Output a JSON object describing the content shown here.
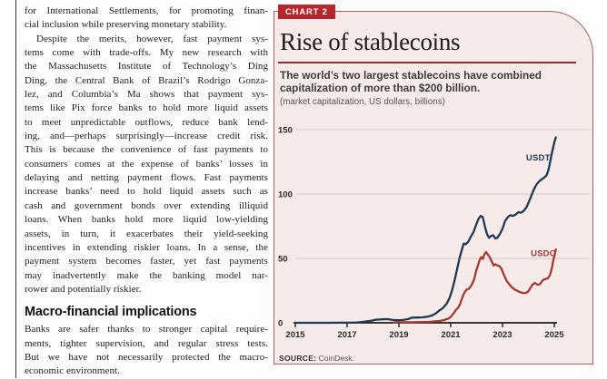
{
  "left_column": {
    "para1_lines": [
      "for International Settlements, for promoting finan-",
      "cial inclusion while preserving monetary stability."
    ],
    "para2_lines": [
      "Despite the merits, however, fast payment sys-",
      "tems come with trade-offs. My new research with",
      "the Massachusetts Institute of Technology’s Ding",
      "Ding, the Central Bank of Brazil’s Rodrigo Gonza-",
      "lez, and Columbia’s Ma shows that payment sys-",
      "tems like Pix force banks to hold more liquid assets",
      "to meet unpredictable outflows, reduce bank lend-",
      "ing, and—perhaps surprisingly—increase credit risk.",
      "This is because the convenience of fast payments to",
      "consumers comes at the expense of banks’ losses in",
      "delaying and netting payment flows. Fast payments",
      "increase banks’ need to hold liquid assets such as",
      "cash and government bonds over extending illiquid",
      "loans. When banks hold more liquid low-yielding",
      "assets, in turn, it exacerbates their yield-seeking",
      "incentives in extending riskier loans. In a sense, the",
      "payment system becomes faster, yet fast payments",
      "may inadvertently make the banking model nar-",
      "rower and potentially riskier."
    ],
    "heading": "Macro-financial implications",
    "para3_lines": [
      "Banks are safer thanks to stronger capital require-",
      "ments, tighter supervision, and regular stress tests.",
      "But we have not necessarily protected the macro-",
      "economic environment."
    ]
  },
  "chart_panel": {
    "badge": "CHART 2",
    "title": "Rise of stablecoins",
    "subtitle_lines": [
      "The world’s two largest stablecoins have combined",
      "capitalization of more than $200 billion."
    ],
    "note": "(market capitalization, US dollars, billions)",
    "source_label": "SOURCE:",
    "source_value": " CoinDesk.",
    "colors": {
      "panel_bg": "#f6ebe8",
      "panel_border": "#a66161",
      "badge_bg": "#b7262d",
      "divider": "#8d2d34"
    }
  },
  "chart_data": {
    "type": "line",
    "title": "Rise of stablecoins",
    "subtitle": "The world’s two largest stablecoins have combined capitalization of more than $200 billion.",
    "unit_note": "(market capitalization, US dollars, billions)",
    "source": "SOURCE: CoinDesk.",
    "xlim": [
      2015,
      2025.3
    ],
    "ylim": [
      0,
      150
    ],
    "x_ticks": [
      2015,
      2017,
      2019,
      2021,
      2023,
      2025
    ],
    "y_ticks": [
      0,
      50,
      100,
      150
    ],
    "grid": true,
    "legend_position": "inline-labels",
    "colors": {
      "grid": "#dccfcb",
      "axis": "#1c1b19",
      "tick_label": "#2a2927"
    },
    "series": [
      {
        "name": "USDT",
        "color": "#1e3a52",
        "label_pos": {
          "x": 2023.91,
          "y": 128
        },
        "points": [
          [
            2015.0,
            0
          ],
          [
            2015.6,
            0
          ],
          [
            2016.2,
            0.01
          ],
          [
            2016.8,
            0.05
          ],
          [
            2017.1,
            0.1
          ],
          [
            2017.4,
            0.3
          ],
          [
            2017.7,
            0.9
          ],
          [
            2017.95,
            1.6
          ],
          [
            2018.1,
            2.4
          ],
          [
            2018.35,
            2.7
          ],
          [
            2018.55,
            2.9
          ],
          [
            2018.75,
            2.2
          ],
          [
            2018.95,
            2.0
          ],
          [
            2019.15,
            2.2
          ],
          [
            2019.35,
            2.8
          ],
          [
            2019.5,
            4.0
          ],
          [
            2019.7,
            4.1
          ],
          [
            2019.9,
            4.2
          ],
          [
            2020.1,
            4.7
          ],
          [
            2020.25,
            5.4
          ],
          [
            2020.4,
            7.0
          ],
          [
            2020.55,
            9.4
          ],
          [
            2020.7,
            11.5
          ],
          [
            2020.85,
            15
          ],
          [
            2020.95,
            19
          ],
          [
            2021.05,
            25
          ],
          [
            2021.15,
            33
          ],
          [
            2021.25,
            42
          ],
          [
            2021.35,
            51
          ],
          [
            2021.45,
            58
          ],
          [
            2021.5,
            61.5
          ],
          [
            2021.58,
            61
          ],
          [
            2021.68,
            63
          ],
          [
            2021.78,
            67
          ],
          [
            2021.88,
            70.5
          ],
          [
            2021.98,
            76
          ],
          [
            2022.08,
            81
          ],
          [
            2022.16,
            83
          ],
          [
            2022.24,
            82
          ],
          [
            2022.32,
            75
          ],
          [
            2022.4,
            69
          ],
          [
            2022.48,
            66
          ],
          [
            2022.56,
            67.5
          ],
          [
            2022.64,
            68
          ],
          [
            2022.72,
            65.5
          ],
          [
            2022.8,
            66
          ],
          [
            2022.9,
            69
          ],
          [
            2023.0,
            73
          ],
          [
            2023.1,
            79
          ],
          [
            2023.2,
            82
          ],
          [
            2023.3,
            83.5
          ],
          [
            2023.4,
            83
          ],
          [
            2023.5,
            84
          ],
          [
            2023.62,
            86
          ],
          [
            2023.72,
            85.5
          ],
          [
            2023.82,
            87
          ],
          [
            2023.92,
            89.5
          ],
          [
            2024.02,
            94
          ],
          [
            2024.12,
            99
          ],
          [
            2024.22,
            104
          ],
          [
            2024.32,
            107.5
          ],
          [
            2024.42,
            110
          ],
          [
            2024.52,
            111.5
          ],
          [
            2024.62,
            113
          ],
          [
            2024.7,
            114.5
          ],
          [
            2024.78,
            119
          ],
          [
            2024.85,
            126
          ],
          [
            2024.92,
            133
          ],
          [
            2025.0,
            140
          ],
          [
            2025.06,
            144
          ]
        ]
      },
      {
        "name": "USDC",
        "color": "#a43a33",
        "label_pos": {
          "x": 2024.09,
          "y": 54
        },
        "points": [
          [
            2018.8,
            0.3
          ],
          [
            2019.1,
            0.4
          ],
          [
            2019.4,
            0.45
          ],
          [
            2019.7,
            0.5
          ],
          [
            2020.0,
            0.6
          ],
          [
            2020.2,
            0.8
          ],
          [
            2020.4,
            1.1
          ],
          [
            2020.6,
            1.5
          ],
          [
            2020.75,
            2.2
          ],
          [
            2020.9,
            3.2
          ],
          [
            2021.0,
            4.5
          ],
          [
            2021.1,
            7
          ],
          [
            2021.2,
            10
          ],
          [
            2021.28,
            11.5
          ],
          [
            2021.36,
            14.5
          ],
          [
            2021.44,
            19
          ],
          [
            2021.52,
            23
          ],
          [
            2021.6,
            25.5
          ],
          [
            2021.7,
            26.5
          ],
          [
            2021.8,
            29
          ],
          [
            2021.9,
            33.5
          ],
          [
            2021.98,
            40
          ],
          [
            2022.06,
            45
          ],
          [
            2022.12,
            49
          ],
          [
            2022.18,
            51
          ],
          [
            2022.24,
            49.5
          ],
          [
            2022.3,
            53
          ],
          [
            2022.36,
            55
          ],
          [
            2022.44,
            53
          ],
          [
            2022.52,
            50.5
          ],
          [
            2022.6,
            47
          ],
          [
            2022.66,
            44.5
          ],
          [
            2022.72,
            45.5
          ],
          [
            2022.8,
            44.5
          ],
          [
            2022.88,
            44
          ],
          [
            2022.96,
            42
          ],
          [
            2023.06,
            37
          ],
          [
            2023.16,
            32.5
          ],
          [
            2023.26,
            30
          ],
          [
            2023.36,
            27.5
          ],
          [
            2023.5,
            25.5
          ],
          [
            2023.65,
            24
          ],
          [
            2023.8,
            23
          ],
          [
            2023.95,
            23.5
          ],
          [
            2024.05,
            26
          ],
          [
            2024.15,
            29.5
          ],
          [
            2024.25,
            31
          ],
          [
            2024.35,
            29.5
          ],
          [
            2024.45,
            30
          ],
          [
            2024.55,
            33
          ],
          [
            2024.65,
            34
          ],
          [
            2024.75,
            34.5
          ],
          [
            2024.83,
            37
          ],
          [
            2024.9,
            42
          ],
          [
            2024.97,
            49
          ],
          [
            2025.06,
            57
          ]
        ]
      }
    ]
  }
}
